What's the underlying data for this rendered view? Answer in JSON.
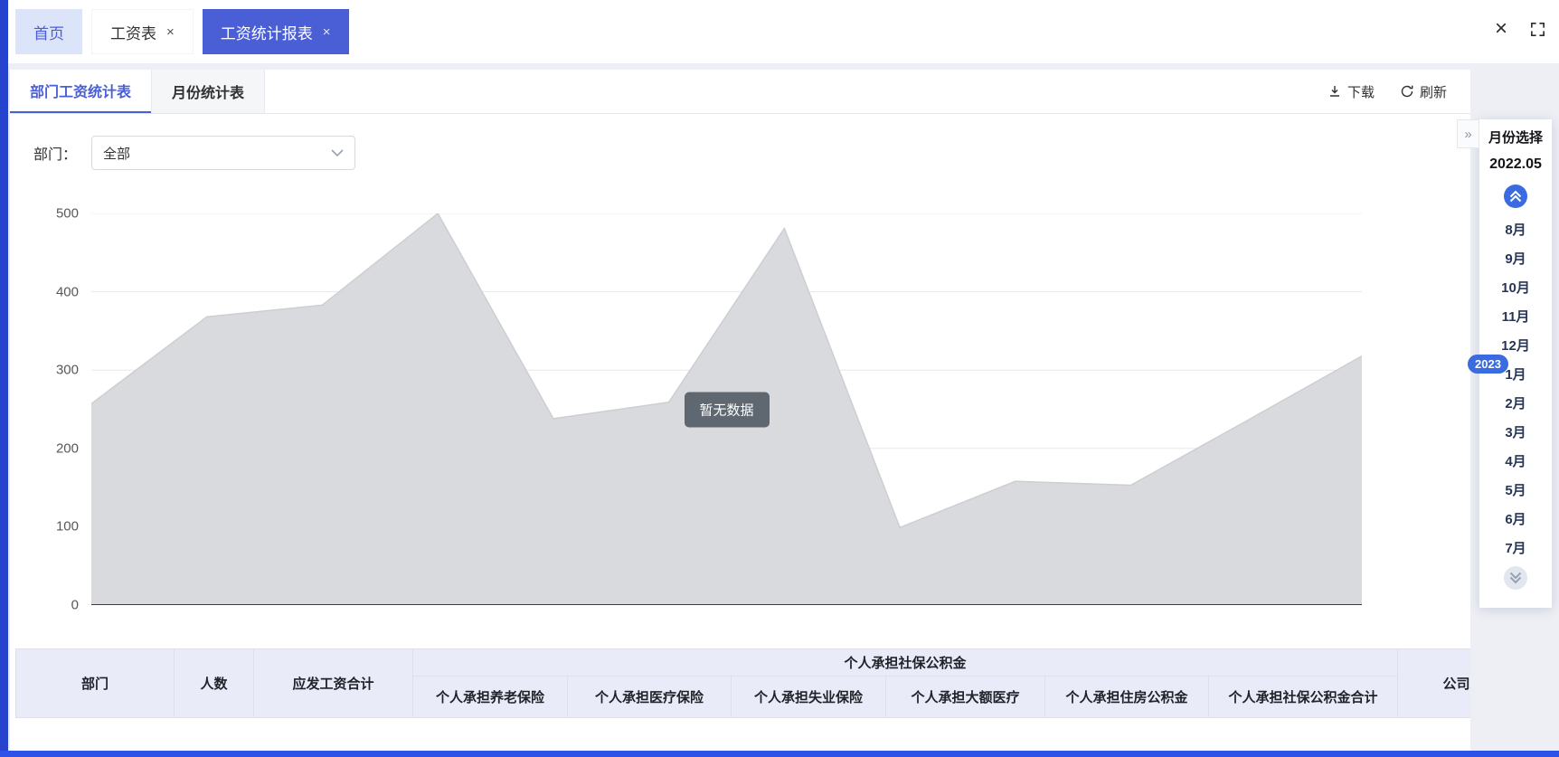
{
  "top_bar": {
    "tabs": [
      {
        "label": "首页"
      },
      {
        "label": "工资表"
      },
      {
        "label": "工资统计报表"
      }
    ],
    "tab_close_icon": "×",
    "window_close_icon": "×"
  },
  "toolbar": {
    "tabs": [
      {
        "label": "部门工资统计表"
      },
      {
        "label": "月份统计表"
      }
    ],
    "download_label": "下载",
    "refresh_label": "刷新"
  },
  "filter": {
    "department_label": "部门：",
    "department_value": "全部"
  },
  "chart_data": {
    "type": "area",
    "x": [
      0,
      1,
      2,
      3,
      4,
      5,
      6,
      7,
      8,
      9,
      10,
      11
    ],
    "values": [
      257,
      368,
      383,
      500,
      238,
      259,
      481,
      99,
      158,
      153,
      235,
      318
    ],
    "yticks": [
      0,
      100,
      200,
      300,
      400,
      500
    ],
    "ylim": [
      0,
      500
    ],
    "title": "",
    "xlabel": "",
    "ylabel": "",
    "grid": true,
    "legend": false,
    "fill_color": "#d9dade",
    "line_color": "#cdced2",
    "empty_text": "暂无数据"
  },
  "month_panel": {
    "collapse_icon": "»",
    "title": "月份选择",
    "current": "2022.05",
    "year_badge": "2023",
    "months": [
      "8月",
      "9月",
      "10月",
      "11月",
      "12月",
      "1月",
      "2月",
      "3月",
      "4月",
      "5月",
      "6月",
      "7月"
    ]
  },
  "table": {
    "columns_left": [
      "部门",
      "人数",
      "应发工资合计"
    ],
    "group_header": "个人承担社保公积金",
    "group_columns": [
      "个人承担养老保险",
      "个人承担医疗保险",
      "个人承担失业保险",
      "个人承担大额医疗",
      "个人承担住房公积金",
      "个人承担社保公积金合计"
    ],
    "columns_right": [
      "公司承担"
    ]
  },
  "colors": {
    "primary": "#4a5fd6",
    "left_strip": "#2543cc",
    "bottom_strip": "#2d52e8",
    "table_header_bg": "#e9ecf8",
    "tooltip_bg": "#5f6771",
    "badge_blue": "#3a6be0"
  }
}
